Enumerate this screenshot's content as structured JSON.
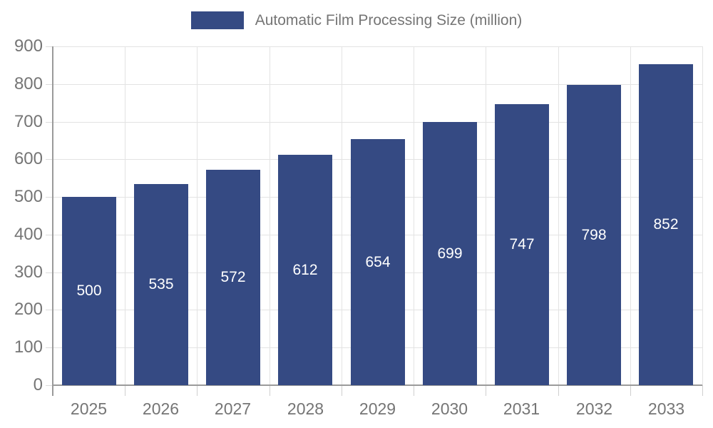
{
  "legend": {
    "label": "Automatic Film Processing Size (million)"
  },
  "chart_data": {
    "type": "bar",
    "title": "Automatic Film Processing Size (million)",
    "categories": [
      "2025",
      "2026",
      "2027",
      "2028",
      "2029",
      "2030",
      "2031",
      "2032",
      "2033"
    ],
    "values": [
      500,
      535,
      572,
      612,
      654,
      699,
      747,
      798,
      852
    ],
    "xlabel": "",
    "ylabel": "",
    "ylim": [
      0,
      900
    ],
    "yticks": [
      0,
      100,
      200,
      300,
      400,
      500,
      600,
      700,
      800,
      900
    ],
    "grid": true,
    "legend_position": "top-center",
    "value_labels": "inside-center",
    "colors": {
      "bar": "#354a83",
      "grid": "#e3e3e3",
      "axis": "#9a9a9a",
      "tick_text": "#757575",
      "value_label": "#ffffff",
      "background": "#ffffff"
    }
  }
}
